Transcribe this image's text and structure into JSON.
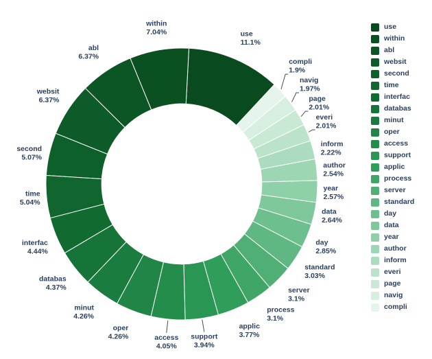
{
  "chart_data": {
    "type": "donut",
    "title": "",
    "unit": "%",
    "legend_position": "right",
    "direction": "counterclockwise",
    "start_angle_deg": 47,
    "hole_ratio": 0.59,
    "background_color": "#ffffff",
    "label_color": "#2a3f5f",
    "leader_color": "#4a4a4a",
    "slice_border_color": "#ffffff",
    "palette_stops": [
      "#094a1e",
      "#116b31",
      "#2f9e5a",
      "#8ed0a8",
      "#e6f5ec"
    ],
    "items": [
      {
        "name": "use",
        "value": 11.1,
        "label": "11.1%",
        "leader": false
      },
      {
        "name": "within",
        "value": 7.04,
        "label": "7.04%",
        "leader": false
      },
      {
        "name": "abl",
        "value": 6.37,
        "label": "6.37%",
        "leader": false
      },
      {
        "name": "websit",
        "value": 6.37,
        "label": "6.37%",
        "leader": false
      },
      {
        "name": "second",
        "value": 5.07,
        "label": "5.07%",
        "leader": false
      },
      {
        "name": "time",
        "value": 5.04,
        "label": "5.04%",
        "leader": false
      },
      {
        "name": "interfac",
        "value": 4.44,
        "label": "4.44%",
        "leader": false
      },
      {
        "name": "databas",
        "value": 4.37,
        "label": "4.37%",
        "leader": false
      },
      {
        "name": "minut",
        "value": 4.26,
        "label": "4.26%",
        "leader": false
      },
      {
        "name": "oper",
        "value": 4.26,
        "label": "4.26%",
        "leader": false
      },
      {
        "name": "access",
        "value": 4.05,
        "label": "4.05%",
        "leader": true
      },
      {
        "name": "support",
        "value": 3.94,
        "label": "3.94%",
        "leader": true
      },
      {
        "name": "applic",
        "value": 3.77,
        "label": "3.77%",
        "leader": false
      },
      {
        "name": "process",
        "value": 3.1,
        "label": "3.1%",
        "leader": false
      },
      {
        "name": "server",
        "value": 3.1,
        "label": "3.1%",
        "leader": false
      },
      {
        "name": "standard",
        "value": 3.03,
        "label": "3.03%",
        "leader": false
      },
      {
        "name": "day",
        "value": 2.85,
        "label": "2.85%",
        "leader": false
      },
      {
        "name": "data",
        "value": 2.64,
        "label": "2.64%",
        "leader": false
      },
      {
        "name": "year",
        "value": 2.57,
        "label": "2.57%",
        "leader": false
      },
      {
        "name": "author",
        "value": 2.54,
        "label": "2.54%",
        "leader": false
      },
      {
        "name": "inform",
        "value": 2.22,
        "label": "2.22%",
        "leader": false
      },
      {
        "name": "everi",
        "value": 2.01,
        "label": "2.01%",
        "leader": true
      },
      {
        "name": "page",
        "value": 2.01,
        "label": "2.01%",
        "leader": true
      },
      {
        "name": "navig",
        "value": 1.97,
        "label": "1.97%",
        "leader": true
      },
      {
        "name": "compli",
        "value": 1.9,
        "label": "1.9%",
        "leader": true
      }
    ]
  }
}
